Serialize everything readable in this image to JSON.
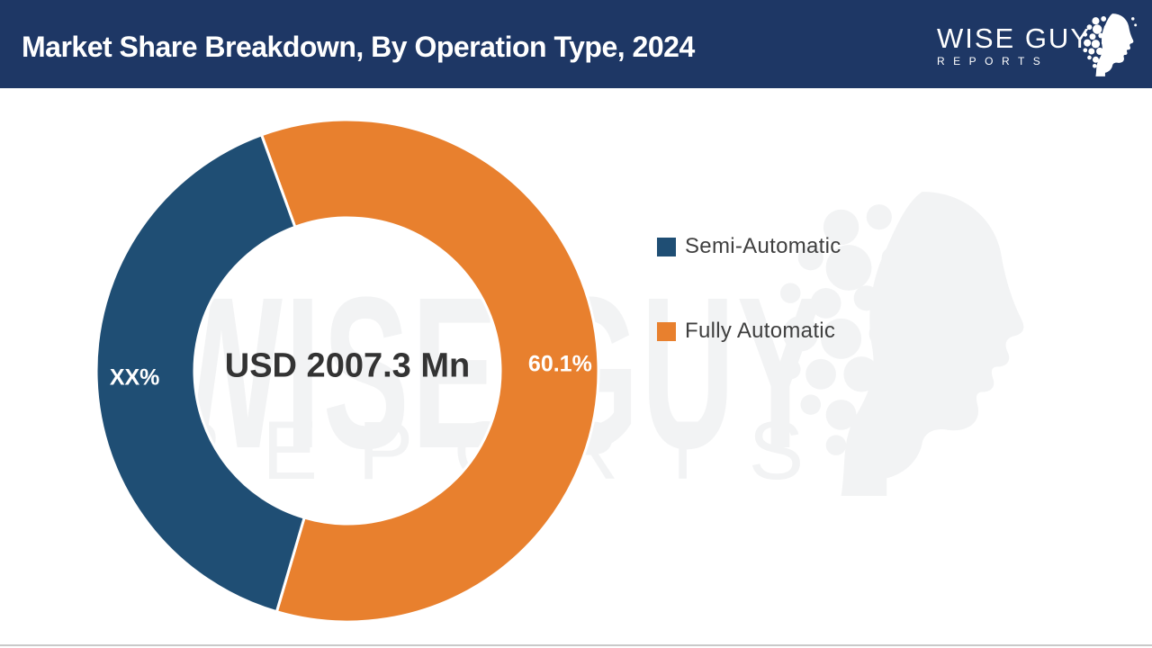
{
  "header": {
    "title": "Market Share Breakdown, By Operation Type, 2024",
    "brand": {
      "line1": "WISE GUY",
      "line2": "REPORTS"
    }
  },
  "watermark": {
    "line1": "WISE GUY",
    "line2": "REPORTS"
  },
  "chart_data": {
    "type": "donut",
    "title": "Market Share Breakdown, By Operation Type, 2024",
    "center_label": "USD 2007.3 Mn",
    "start_angle_deg": -20,
    "hole_ratio": 0.61,
    "legend_position": "right",
    "slices": [
      {
        "name": "Fully Automatic",
        "value": 60.1,
        "label": "60.1%",
        "color": "#E8802E"
      },
      {
        "name": "Semi-Automatic",
        "value": 39.9,
        "label": "XX%",
        "color": "#1F4E74"
      }
    ]
  },
  "legend": {
    "items": [
      {
        "label": "Semi-Automatic",
        "color": "#1F4E74"
      },
      {
        "label": "Fully Automatic",
        "color": "#E8802E"
      }
    ]
  },
  "colors": {
    "header_bg": "#1E3765",
    "blue": "#1F4E74",
    "orange": "#E8802E",
    "center_text": "#333333",
    "watermark": "#F2F3F4"
  }
}
